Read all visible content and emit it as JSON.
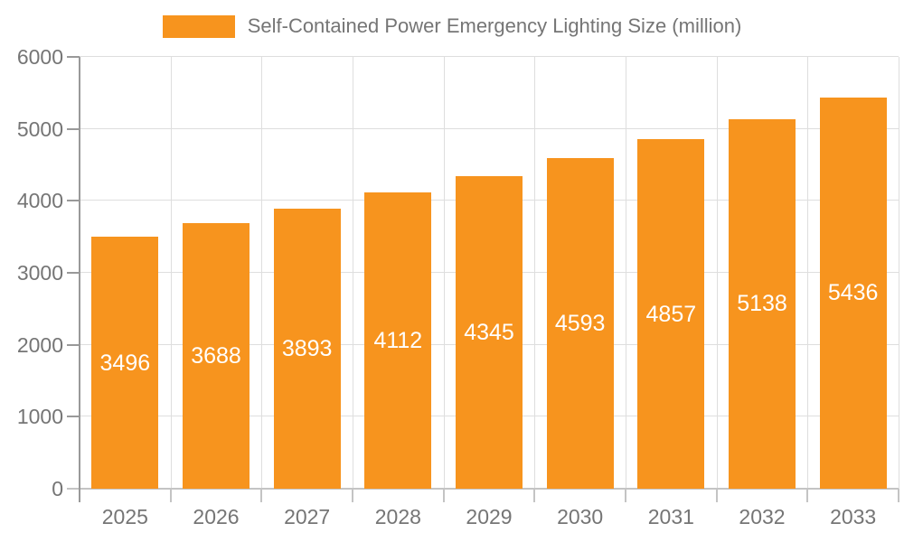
{
  "chart_data": {
    "type": "bar",
    "title": "Self-Contained Power Emergency Lighting Size (million)",
    "categories": [
      "2025",
      "2026",
      "2027",
      "2028",
      "2029",
      "2030",
      "2031",
      "2032",
      "2033"
    ],
    "series": [
      {
        "name": "Self-Contained Power Emergency Lighting Size (million)",
        "values": [
          3496,
          3688,
          3893,
          4112,
          4345,
          4593,
          4857,
          5138,
          5436
        ]
      }
    ],
    "xlabel": "",
    "ylabel": "",
    "ylim": [
      0,
      6000
    ],
    "yticks": [
      0,
      1000,
      2000,
      3000,
      4000,
      5000,
      6000
    ],
    "grid": true,
    "legend_position": "top",
    "bar_color": "#F7941E",
    "bar_label_color": "#FFFFFF",
    "axis_text_color": "#757575",
    "gridline_color": "#DEDEDE",
    "y_axis_line_color": "#999999",
    "x_axis_line_color": "#C4C4C4",
    "background_color": "#FFFFFF"
  }
}
